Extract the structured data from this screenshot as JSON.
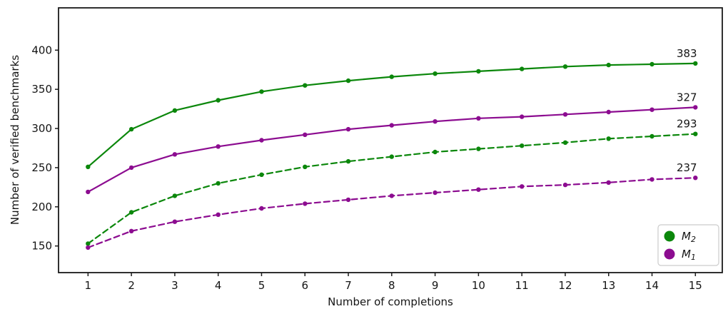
{
  "colors": {
    "green": "#0b870b",
    "purple": "#8c0c90",
    "axis": "#1a1a1a",
    "legend_border": "#cccccc"
  },
  "chart_data": {
    "type": "line",
    "x": [
      1,
      2,
      3,
      4,
      5,
      6,
      7,
      8,
      9,
      10,
      11,
      12,
      13,
      14,
      15
    ],
    "xlabel": "Number of completions",
    "ylabel": "Number of verified benchmarks",
    "xticks": [
      "1",
      "2",
      "3",
      "4",
      "5",
      "6",
      "7",
      "8",
      "9",
      "10",
      "11",
      "12",
      "13",
      "14",
      "15"
    ],
    "yticks": [
      150,
      200,
      250,
      300,
      350,
      400
    ],
    "xlim": [
      0.32,
      15.62
    ],
    "ylim": [
      116,
      454
    ],
    "grid": false,
    "legend_position": "lower right",
    "series": [
      {
        "name": "M2-solid",
        "color": "green",
        "line_style": "solid",
        "values": [
          251,
          299,
          323,
          336,
          347,
          355,
          361,
          366,
          370,
          373,
          376,
          379,
          381,
          382,
          383
        ],
        "end_label": "383"
      },
      {
        "name": "M1-solid",
        "color": "purple",
        "line_style": "solid",
        "values": [
          219,
          250,
          267,
          277,
          285,
          292,
          299,
          304,
          309,
          313,
          315,
          318,
          321,
          324,
          327
        ],
        "end_label": "327"
      },
      {
        "name": "M2-dashed",
        "color": "green",
        "line_style": "dashed",
        "values": [
          153,
          193,
          214,
          230,
          241,
          251,
          258,
          264,
          270,
          274,
          278,
          282,
          287,
          290,
          293
        ],
        "end_label": "293"
      },
      {
        "name": "M1-dashed",
        "color": "purple",
        "line_style": "dashed",
        "values": [
          148,
          169,
          181,
          190,
          198,
          204,
          209,
          214,
          218,
          222,
          226,
          228,
          231,
          235,
          237
        ],
        "end_label": "237"
      }
    ]
  },
  "legend": {
    "entries": [
      {
        "label": "M",
        "subscript": "2",
        "color": "green"
      },
      {
        "label": "M",
        "subscript": "1",
        "color": "purple"
      }
    ]
  }
}
